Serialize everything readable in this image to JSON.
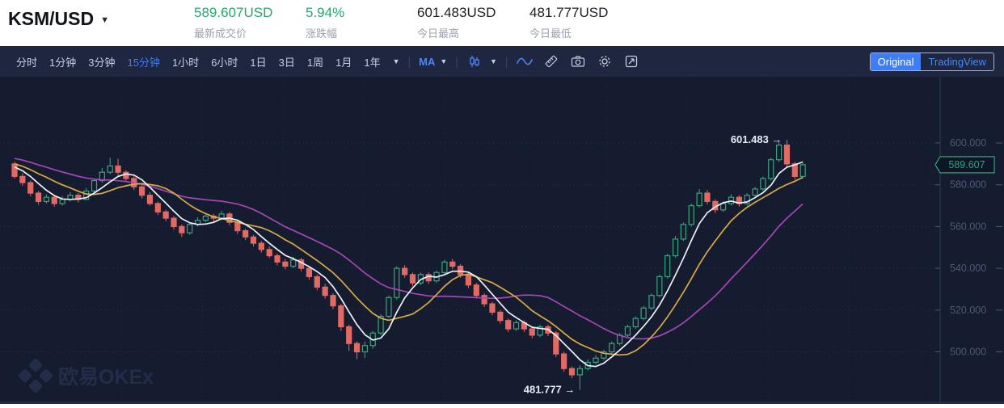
{
  "header": {
    "pair": "KSM/USD",
    "caret": "▼",
    "stats": [
      {
        "value": "589.607USD",
        "label": "最新成交价",
        "tone": "green"
      },
      {
        "value": "5.94%",
        "label": "涨跌幅",
        "tone": "green"
      },
      {
        "value": "601.483USD",
        "label": "今日最高",
        "tone": "dark"
      },
      {
        "value": "481.777USD",
        "label": "今日最低",
        "tone": "dark"
      }
    ]
  },
  "toolbar": {
    "timeframes": [
      {
        "label": "分时",
        "active": false
      },
      {
        "label": "1分钟",
        "active": false
      },
      {
        "label": "3分钟",
        "active": false
      },
      {
        "label": "15分钟",
        "active": true
      },
      {
        "label": "1小时",
        "active": false
      },
      {
        "label": "6小时",
        "active": false
      },
      {
        "label": "1日",
        "active": false
      },
      {
        "label": "3日",
        "active": false
      },
      {
        "label": "1周",
        "active": false
      },
      {
        "label": "1月",
        "active": false
      },
      {
        "label": "1年",
        "active": false
      }
    ],
    "more_caret": "▼",
    "ma_label": "MA",
    "icons": [
      "candle-style",
      "line-style",
      "measure",
      "camera",
      "settings",
      "fullscreen"
    ],
    "view_toggle": {
      "original": "Original",
      "tradingview": "TradingView",
      "active": "Original"
    }
  },
  "chart": {
    "watermark": "欧易OKEx",
    "current_price_label": "589.607",
    "colors": {
      "background": "#151c30",
      "up": "#3aa57c",
      "down": "#e16a64",
      "ma_white": "#edf1f8",
      "ma_yellow": "#d9ab41",
      "ma_purple": "#a646b4",
      "axis_text": "#4e5974",
      "grid": "#2b3352",
      "axis_line": "#2e3757",
      "badge_green": "#2aa678",
      "annotation": "#e8ecf4",
      "watermark": "#232c49"
    }
  },
  "chart_data": {
    "type": "candlestick",
    "pair": "KSM/USD",
    "interval": "15分钟",
    "last_price": 589.607,
    "day_high": 601.483,
    "day_low": 481.777,
    "y_ticks": [
      {
        "value": 600,
        "label": "600.000"
      },
      {
        "value": 580,
        "label": "580.000"
      },
      {
        "value": 560,
        "label": "560.000"
      },
      {
        "value": 540,
        "label": "540.000"
      },
      {
        "value": 520,
        "label": "520.000"
      },
      {
        "value": 500,
        "label": "500.000"
      }
    ],
    "annotations": [
      {
        "text": "601.483",
        "arrow": "→",
        "candle_index": 97,
        "anchor": "high"
      },
      {
        "text": "481.777",
        "arrow": "→",
        "candle_index": 71,
        "anchor": "low"
      }
    ],
    "ma_periods": {
      "white": 5,
      "yellow": 10,
      "purple": 20
    },
    "history_closes": [
      597.5,
      597,
      596.5,
      596,
      595.5,
      595,
      594.5,
      594,
      593.5,
      593,
      592.5,
      592,
      591.5,
      591,
      590.5,
      590,
      589.5,
      589,
      590
    ],
    "candles": [
      [
        590,
        591,
        583,
        584
      ],
      [
        584,
        585.5,
        579.5,
        581
      ],
      [
        581,
        582,
        574.5,
        576
      ],
      [
        576,
        577,
        570.5,
        572
      ],
      [
        572,
        575.5,
        571,
        574
      ],
      [
        574,
        575,
        569.5,
        571
      ],
      [
        571,
        574.5,
        570,
        573
      ],
      [
        573,
        576.5,
        572,
        575
      ],
      [
        575,
        576,
        571.5,
        573
      ],
      [
        573,
        578.5,
        572.5,
        577
      ],
      [
        577,
        583,
        576,
        582
      ],
      [
        582,
        588,
        581,
        586
      ],
      [
        586,
        593,
        585,
        589
      ],
      [
        589,
        592.5,
        584.5,
        586
      ],
      [
        586,
        587,
        581.5,
        583
      ],
      [
        583,
        584,
        577.5,
        579
      ],
      [
        579,
        580,
        573.5,
        575
      ],
      [
        575,
        576.5,
        570,
        571
      ],
      [
        571,
        572,
        565.5,
        567
      ],
      [
        567,
        568,
        562.5,
        564
      ],
      [
        564,
        565,
        558.5,
        560
      ],
      [
        560,
        561,
        555,
        557
      ],
      [
        557,
        562,
        556,
        561
      ],
      [
        561,
        564.5,
        560,
        563
      ],
      [
        563,
        566.5,
        562,
        565
      ],
      [
        565,
        566,
        562.5,
        564
      ],
      [
        564,
        567.5,
        563,
        566
      ],
      [
        566,
        567,
        560.5,
        562
      ],
      [
        562,
        563,
        556.5,
        558
      ],
      [
        558,
        559,
        553.5,
        555
      ],
      [
        555,
        556,
        550.5,
        552
      ],
      [
        552,
        553,
        547.5,
        549
      ],
      [
        549,
        550.5,
        545,
        546
      ],
      [
        546,
        547,
        541.5,
        543
      ],
      [
        543,
        544.5,
        539.5,
        541
      ],
      [
        541,
        545.5,
        540,
        544
      ],
      [
        544,
        545,
        538.5,
        540
      ],
      [
        540,
        541,
        534.5,
        536
      ],
      [
        536,
        537,
        529.5,
        531
      ],
      [
        531,
        532.5,
        525.5,
        527
      ],
      [
        527,
        528,
        520.5,
        522
      ],
      [
        522,
        523,
        510,
        512
      ],
      [
        512,
        513,
        500.5,
        504
      ],
      [
        504,
        505,
        496.5,
        500
      ],
      [
        500,
        505,
        497,
        503
      ],
      [
        503,
        510,
        501.5,
        509
      ],
      [
        509,
        518,
        508,
        517
      ],
      [
        517,
        527,
        516,
        526
      ],
      [
        526,
        541,
        525,
        540
      ],
      [
        540,
        541.5,
        535.5,
        537
      ],
      [
        537,
        538,
        531.5,
        533
      ],
      [
        533,
        538,
        532,
        537
      ],
      [
        537,
        538,
        532.5,
        534
      ],
      [
        534,
        539,
        533,
        538
      ],
      [
        538,
        544,
        537,
        543
      ],
      [
        543,
        544.5,
        539.5,
        541
      ],
      [
        541,
        542,
        535.5,
        537
      ],
      [
        537,
        538,
        530.5,
        532
      ],
      [
        532,
        533,
        525.5,
        527
      ],
      [
        527,
        528,
        521.5,
        523
      ],
      [
        523,
        524,
        517.5,
        519
      ],
      [
        519,
        520,
        513.5,
        515
      ],
      [
        515,
        516,
        509.5,
        511
      ],
      [
        511,
        515,
        510,
        514
      ],
      [
        514,
        515,
        509.5,
        511
      ],
      [
        511,
        512,
        506.5,
        508
      ],
      [
        508,
        513,
        507,
        512
      ],
      [
        512,
        513,
        507.5,
        509
      ],
      [
        509,
        510,
        497.5,
        499
      ],
      [
        499,
        500,
        490.5,
        492
      ],
      [
        492,
        493,
        487.5,
        489
      ],
      [
        489,
        493.5,
        481.777,
        492
      ],
      [
        492,
        496.5,
        491,
        495
      ],
      [
        495,
        498.5,
        494,
        497
      ],
      [
        497,
        501,
        496,
        500
      ],
      [
        500,
        505,
        499,
        504
      ],
      [
        504,
        509,
        503,
        508
      ],
      [
        508,
        513,
        507,
        512
      ],
      [
        512,
        517,
        511,
        516
      ],
      [
        516,
        522,
        515,
        521
      ],
      [
        521,
        528,
        520,
        527
      ],
      [
        527,
        537,
        526,
        536
      ],
      [
        536,
        547,
        535,
        546
      ],
      [
        546,
        555.5,
        545,
        554
      ],
      [
        554,
        562,
        553,
        561
      ],
      [
        561,
        571,
        560,
        570
      ],
      [
        570,
        578,
        569,
        576
      ],
      [
        576,
        577.5,
        570.5,
        572
      ],
      [
        572,
        573,
        566.5,
        568
      ],
      [
        568,
        572,
        567,
        571
      ],
      [
        571,
        575.5,
        570,
        574
      ],
      [
        574,
        575,
        569.5,
        571
      ],
      [
        571,
        576,
        570,
        575
      ],
      [
        575,
        579,
        574,
        578
      ],
      [
        578,
        584,
        577,
        583
      ],
      [
        583,
        593,
        582,
        592
      ],
      [
        592,
        600.2,
        591,
        599
      ],
      [
        599,
        601.483,
        588.5,
        590
      ],
      [
        590,
        591,
        582.5,
        584
      ],
      [
        584,
        590.3,
        583,
        589.607
      ]
    ]
  }
}
